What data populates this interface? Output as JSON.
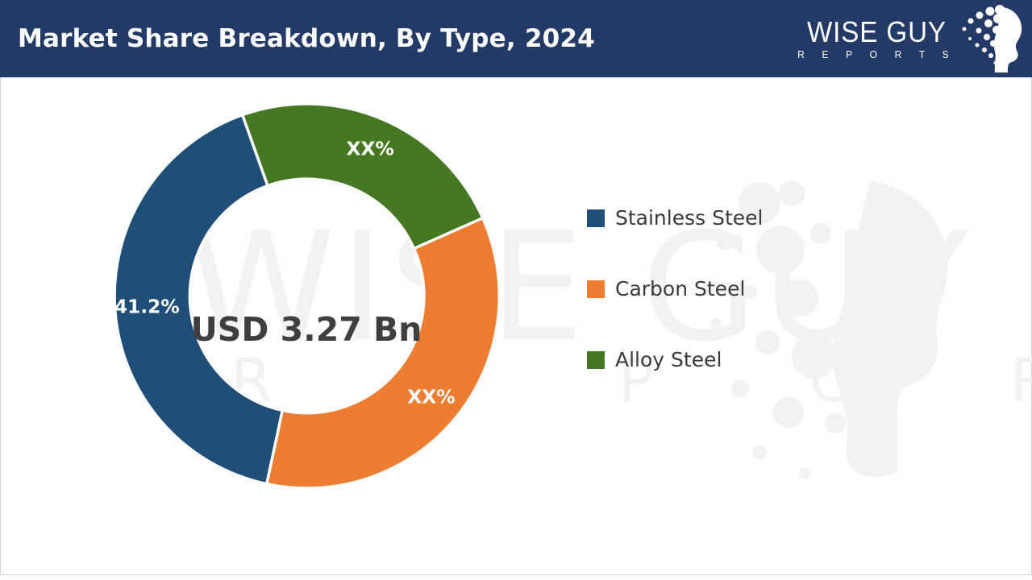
{
  "header": {
    "title": "Market Share Breakdown, By Type, 2024",
    "background_color": "#243A66",
    "logo": {
      "line1": "WISE GUY",
      "line2": "R E P O R T S"
    }
  },
  "watermark": {
    "line1": "WISE GUY",
    "line2": "R E P O R T S"
  },
  "chart_data": {
    "type": "donut",
    "title": "Market Share Breakdown, By Type, 2024",
    "center_label": "USD 3.27 Bn",
    "start_angle_deg": -19.6,
    "direction": "clockwise",
    "legend_position": "right",
    "label_color": "#ffffff",
    "segments": [
      {
        "label": "Stainless Steel",
        "value_pct": 41.2,
        "display_label": "41.2%",
        "color": "#1F4E79"
      },
      {
        "label": "Carbon Steel",
        "value_pct": 35.0,
        "display_label": "XX%",
        "color": "#ED7D31"
      },
      {
        "label": "Alloy Steel",
        "value_pct": 23.8,
        "display_label": "XX%",
        "color": "#467722"
      }
    ]
  }
}
